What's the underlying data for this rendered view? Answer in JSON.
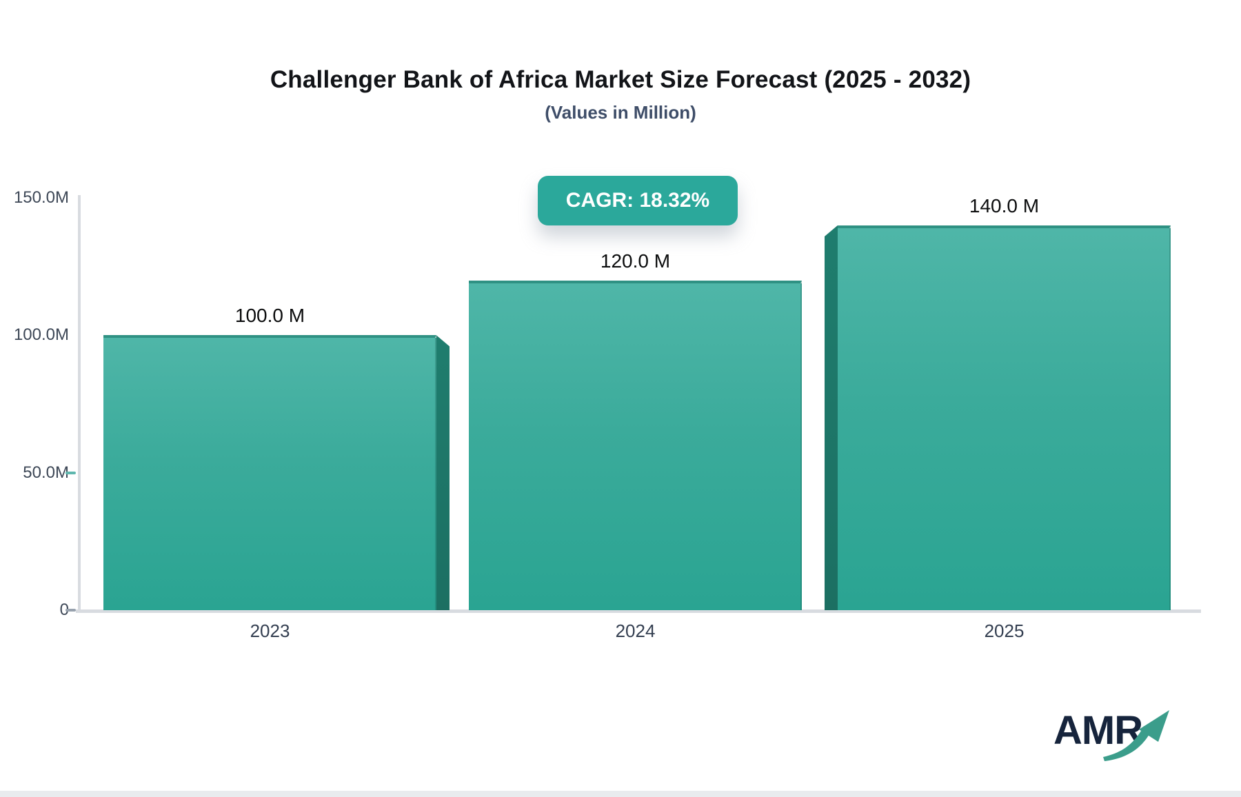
{
  "header": {
    "title": "Challenger Bank of Africa Market Size Forecast (2025 - 2032)",
    "subtitle": "(Values in Million)"
  },
  "badge": {
    "label": "CAGR: 18.32%",
    "bg_color": "#2ba89b",
    "text_color": "#ffffff"
  },
  "logo": {
    "text": "AMR",
    "arrow_icon": "growth-arrow-icon",
    "text_color": "#16243c",
    "arrow_color": "#3b9d8b"
  },
  "colors": {
    "bar_face_top": "#4fb6a8",
    "bar_face_bottom": "#2aa492",
    "bar_side_dark": "#1f7d6e",
    "bar_top_edge": "#2f9183",
    "axis_gray": "#d8dbe0",
    "tick_dash_teal": "#5fb7ae",
    "tick_dash_gray": "#98a2ae",
    "title_text": "#121418",
    "subtitle_text": "#3e4d68",
    "axis_label_text": "#3d4756"
  },
  "chart_data": {
    "type": "bar",
    "title": "Challenger Bank of Africa Market Size Forecast (2025 - 2032)",
    "subtitle": "(Values in Million)",
    "annotation": "CAGR: 18.32%",
    "categories": [
      "2023",
      "2024",
      "2025"
    ],
    "values": [
      100,
      120,
      140
    ],
    "value_labels": [
      "100.0 M",
      "120.0 M",
      "140.0 M"
    ],
    "xlabel": "",
    "ylabel": "",
    "ylim": [
      0,
      150
    ],
    "y_ticks": [
      {
        "label": "150.0M",
        "value": 150,
        "dash": false,
        "dash_color": ""
      },
      {
        "label": "100.0M",
        "value": 100,
        "dash": false,
        "dash_color": ""
      },
      {
        "label": "50.0M",
        "value": 50,
        "dash": true,
        "dash_color": "#5fb7ae"
      },
      {
        "label": "0",
        "value": 0,
        "dash": true,
        "dash_color": "#98a2ae"
      }
    ],
    "grid": false,
    "legend": false,
    "bar_3d_side": [
      "right",
      "none",
      "left"
    ]
  }
}
